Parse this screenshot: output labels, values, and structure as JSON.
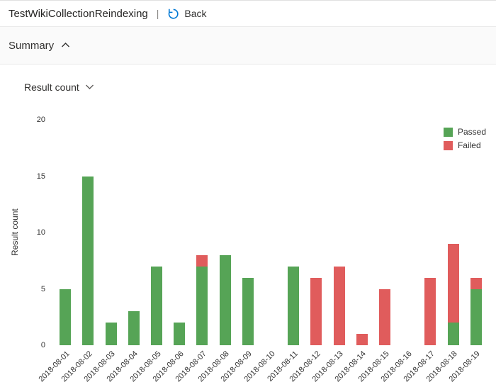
{
  "header": {
    "title": "TestWikiCollectionReindexing",
    "separator": "|",
    "back": {
      "label": "Back",
      "icon": "undo-back-arrow"
    }
  },
  "summary": {
    "label": "Summary",
    "icon": "chevron-up"
  },
  "controls": {
    "metric": "Result count",
    "icon": "chevron-down"
  },
  "colors": {
    "accent": "#0078d4",
    "passed": "#56a456",
    "failed": "#e05c5c",
    "text": "#333333"
  },
  "chart_data": {
    "type": "bar",
    "stacked": true,
    "title": "",
    "xlabel": "",
    "ylabel": "Result count",
    "ylim": [
      0,
      20
    ],
    "yticks": [
      0,
      5,
      10,
      15,
      20
    ],
    "grid": false,
    "legend_position": "top-right",
    "categories": [
      "2018-08-01",
      "2018-08-02",
      "2018-08-03",
      "2018-08-04",
      "2018-08-05",
      "2018-08-06",
      "2018-08-07",
      "2018-08-08",
      "2018-08-09",
      "2018-08-10",
      "2018-08-11",
      "2018-08-12",
      "2018-08-13",
      "2018-08-14",
      "2018-08-15",
      "2018-08-16",
      "2018-08-17",
      "2018-08-18",
      "2018-08-19"
    ],
    "series": [
      {
        "name": "Passed",
        "color": "#56a456",
        "values": [
          5,
          15,
          2,
          3,
          7,
          2,
          7,
          8,
          6,
          0,
          7,
          0,
          0,
          0,
          0,
          0,
          0,
          2,
          5
        ]
      },
      {
        "name": "Failed",
        "color": "#e05c5c",
        "values": [
          0,
          0,
          0,
          0,
          0,
          0,
          1,
          0,
          0,
          0,
          0,
          6,
          7,
          1,
          5,
          0,
          6,
          7,
          1
        ]
      }
    ]
  }
}
